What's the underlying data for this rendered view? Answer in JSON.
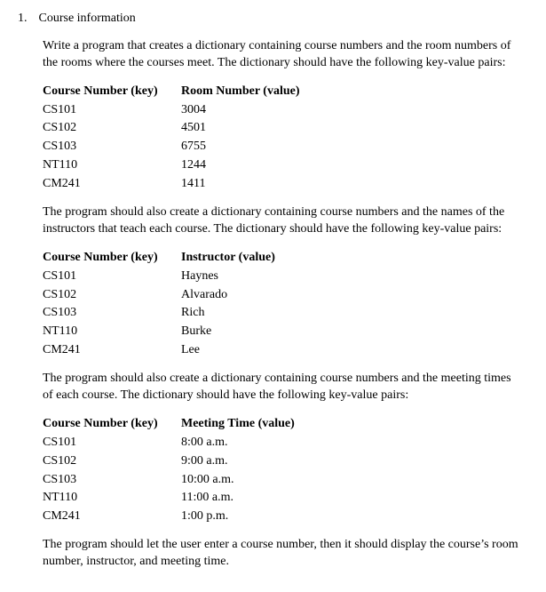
{
  "problem": {
    "number": "1.",
    "title": "Course information"
  },
  "para1": "Write a program that creates a dictionary containing course numbers and the room numbers of the rooms where the courses meet. The dictionary should have the following key-value pairs:",
  "table_rooms": {
    "header_key": "Course Number (key)",
    "header_value": "Room Number (value)",
    "rows": [
      {
        "key": "CS101",
        "value": "3004"
      },
      {
        "key": "CS102",
        "value": "4501"
      },
      {
        "key": "CS103",
        "value": "6755"
      },
      {
        "key": "NT110",
        "value": "1244"
      },
      {
        "key": "CM241",
        "value": "1411"
      }
    ]
  },
  "para2": "The program should also create a dictionary containing course numbers and the names of the instructors that teach each course. The dictionary should have the following key-value pairs:",
  "table_instructors": {
    "header_key": "Course Number (key)",
    "header_value": "Instructor (value)",
    "rows": [
      {
        "key": "CS101",
        "value": "Haynes"
      },
      {
        "key": "CS102",
        "value": "Alvarado"
      },
      {
        "key": "CS103",
        "value": "Rich"
      },
      {
        "key": "NT110",
        "value": "Burke"
      },
      {
        "key": "CM241",
        "value": "Lee"
      }
    ]
  },
  "para3": "The program should also create a dictionary containing course numbers and the meeting times of each course. The dictionary should have the following key-value pairs:",
  "table_times": {
    "header_key": "Course Number (key)",
    "header_value": "Meeting Time (value)",
    "rows": [
      {
        "key": "CS101",
        "value": "8:00 a.m."
      },
      {
        "key": "CS102",
        "value": "9:00 a.m."
      },
      {
        "key": "CS103",
        "value": "10:00 a.m."
      },
      {
        "key": "NT110",
        "value": "11:00 a.m."
      },
      {
        "key": "CM241",
        "value": "1:00 p.m."
      }
    ]
  },
  "para4": "The program should let the user enter a course number, then it should display the course’s room number, instructor, and meeting time."
}
